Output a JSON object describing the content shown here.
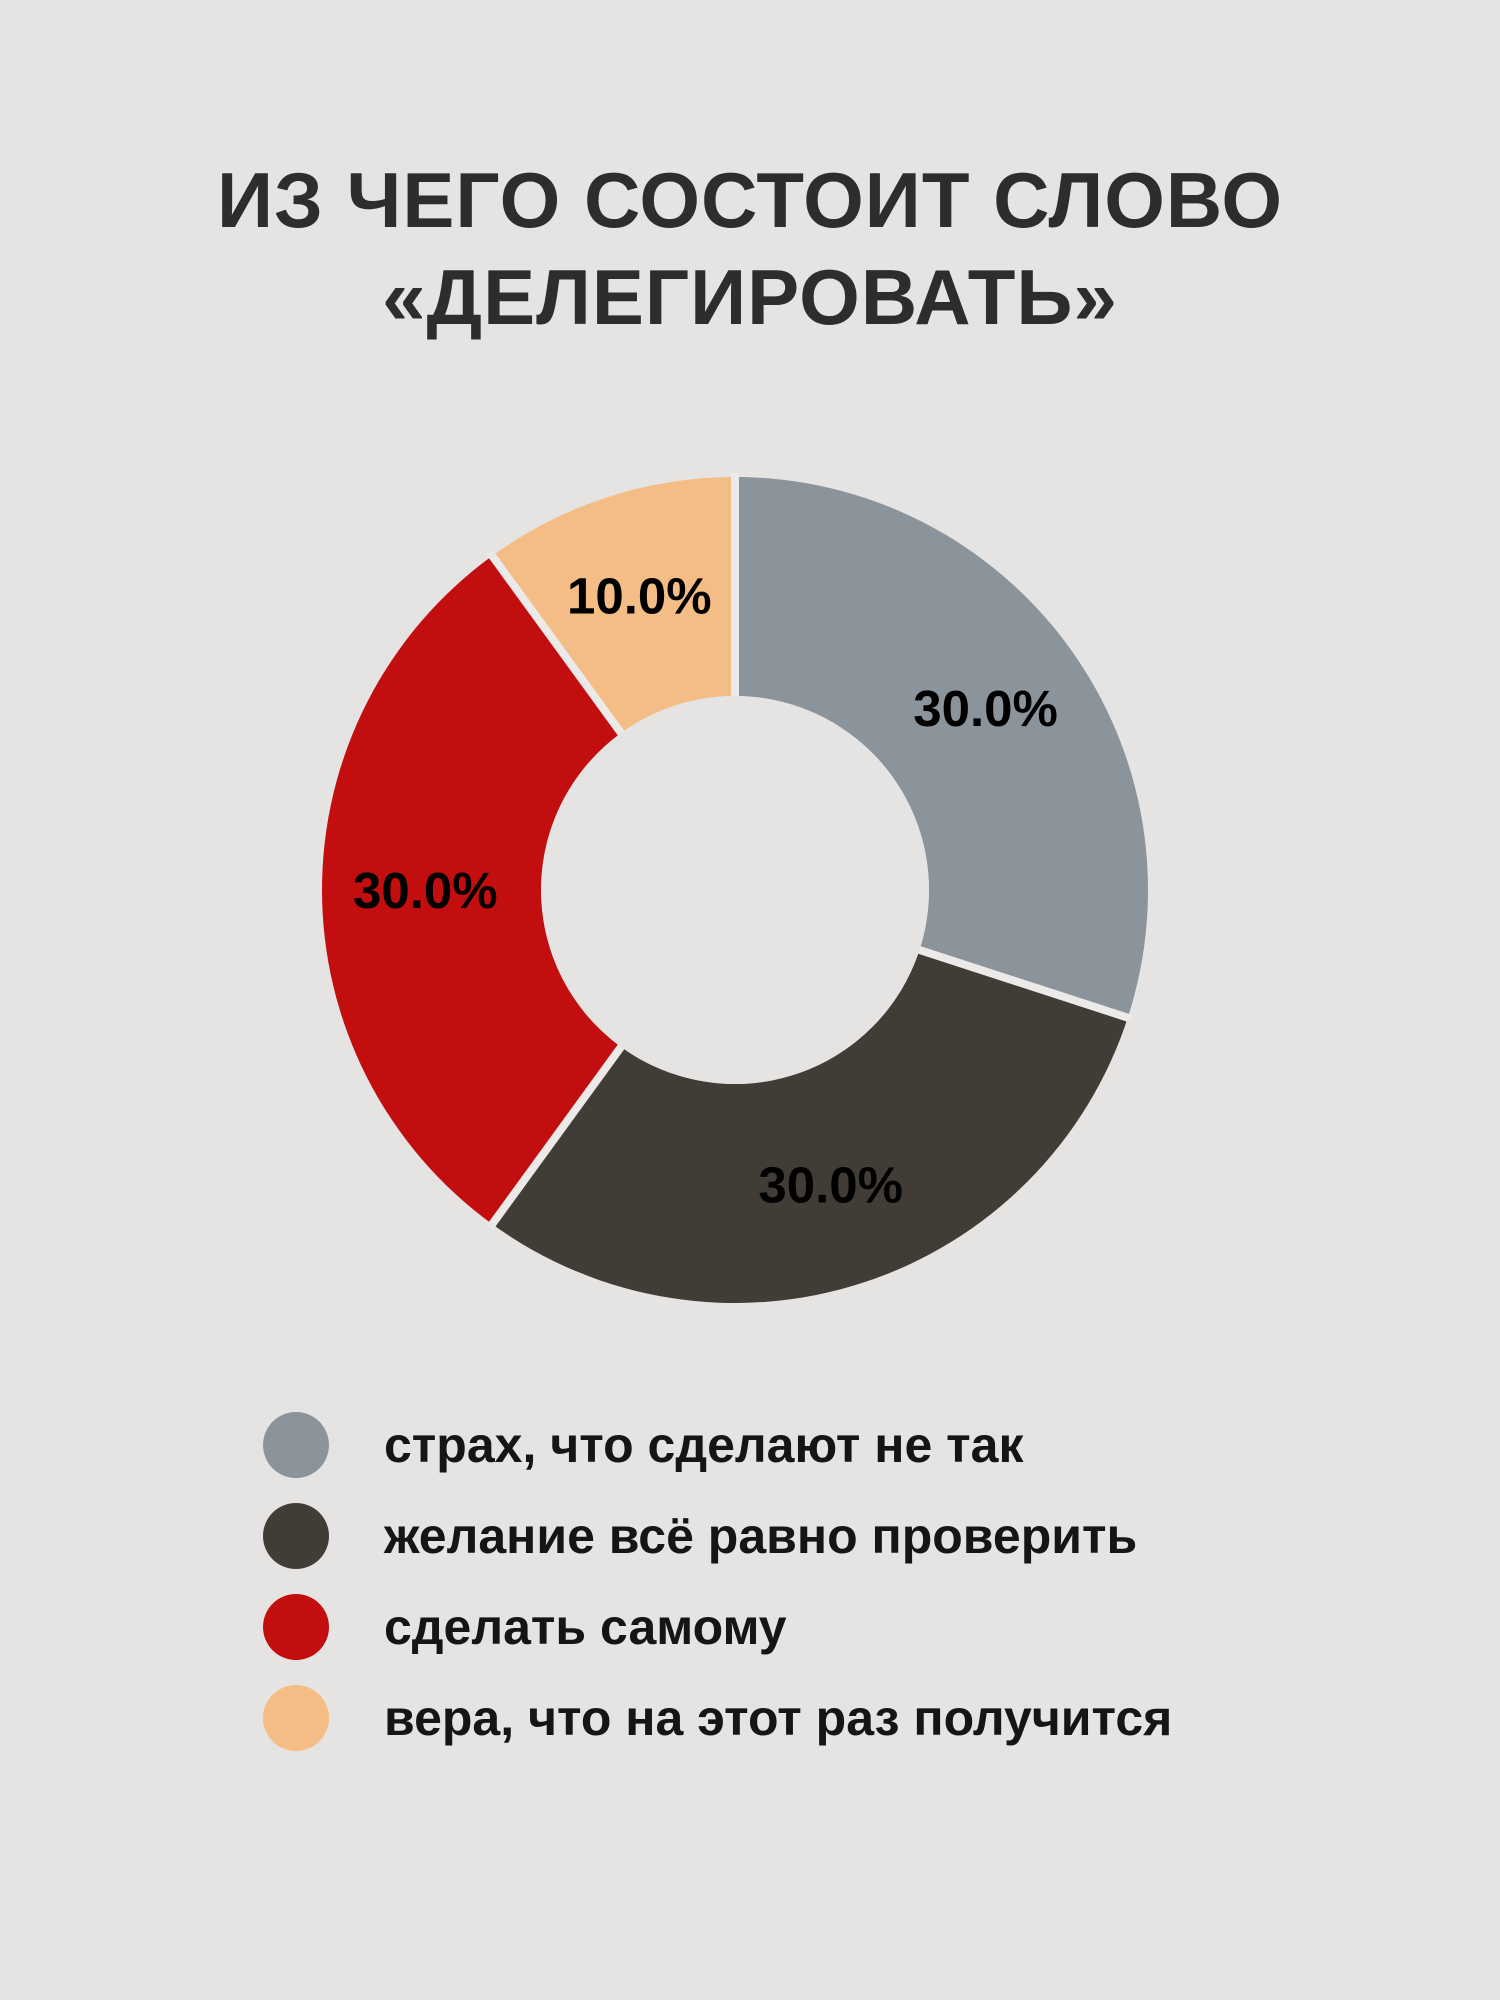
{
  "page": {
    "background": "#e5e4e3"
  },
  "title": {
    "line1": "ИЗ ЧЕГО СОСТОИТ СЛОВО",
    "line2": "«ДЕЛЕГИРОВАТЬ»"
  },
  "chart_data": {
    "type": "pie",
    "subtype": "donut",
    "title": "ИЗ ЧЕГО СОСТОИТ СЛОВО «ДЕЛЕГИРОВАТЬ»",
    "categories": [
      "страх, что сделают не так",
      "желание всё равно проверить",
      "сделать самому",
      "вера, что на этот раз получится"
    ],
    "values": [
      30.0,
      30.0,
      30.0,
      10.0
    ],
    "value_labels": [
      "30.0%",
      "30.0%",
      "30.0%",
      "10.0%"
    ],
    "unit": "%",
    "colors": [
      "#8b939b",
      "#413c36",
      "#c20e0f",
      "#f3bd85"
    ],
    "start_angle_deg": 90,
    "direction": "clockwise",
    "hole_ratio": 0.47,
    "separator_color": "#eceae8",
    "percent_label_color": "#000000",
    "legend_position": "bottom-left",
    "grid": false
  }
}
